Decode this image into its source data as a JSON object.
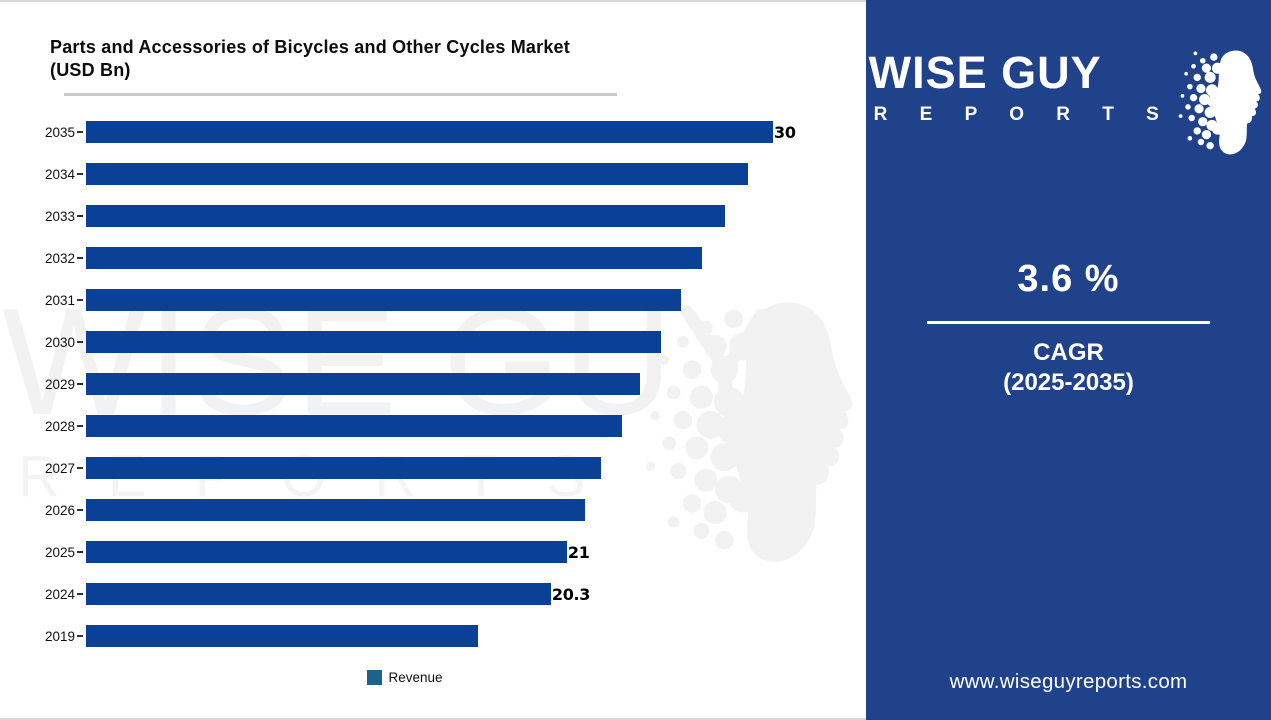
{
  "title": {
    "line1": "Parts and Accessories of Bicycles and Other Cycles Market",
    "line2": "(USD Bn)"
  },
  "chart_data": {
    "type": "bar",
    "orientation": "horizontal",
    "title": "Parts and Accessories of Bicycles and Other Cycles Market (USD Bn)",
    "categories": [
      "2035",
      "2034",
      "2033",
      "2032",
      "2031",
      "2030",
      "2029",
      "2028",
      "2027",
      "2026",
      "2025",
      "2024",
      "2019"
    ],
    "values": [
      30,
      28.9,
      27.9,
      26.9,
      26,
      25.1,
      24.2,
      23.4,
      22.5,
      21.8,
      21,
      20.3,
      17.1
    ],
    "value_labels": [
      "30",
      "",
      "",
      "",
      "",
      "",
      "",
      "",
      "",
      "",
      "21",
      "20.3",
      ""
    ],
    "series_name": "Revenue",
    "xlim": [
      0,
      30
    ],
    "grid": false,
    "legend_position": "bottom",
    "bar_color": "#0B4097",
    "legend_color": "#206189"
  },
  "legend": {
    "label": "Revenue"
  },
  "watermark": {
    "line1": "WISE GUY",
    "line2": "REPORTS"
  },
  "sidebar": {
    "background": "#20428A",
    "logo": {
      "line1": "WISE GUY",
      "line2": "R E P O R T S"
    },
    "cagr_value": "3.6 %",
    "cagr_line1": "CAGR",
    "cagr_line2": "(2025-2035)",
    "website": "www.wiseguyreports.com"
  }
}
